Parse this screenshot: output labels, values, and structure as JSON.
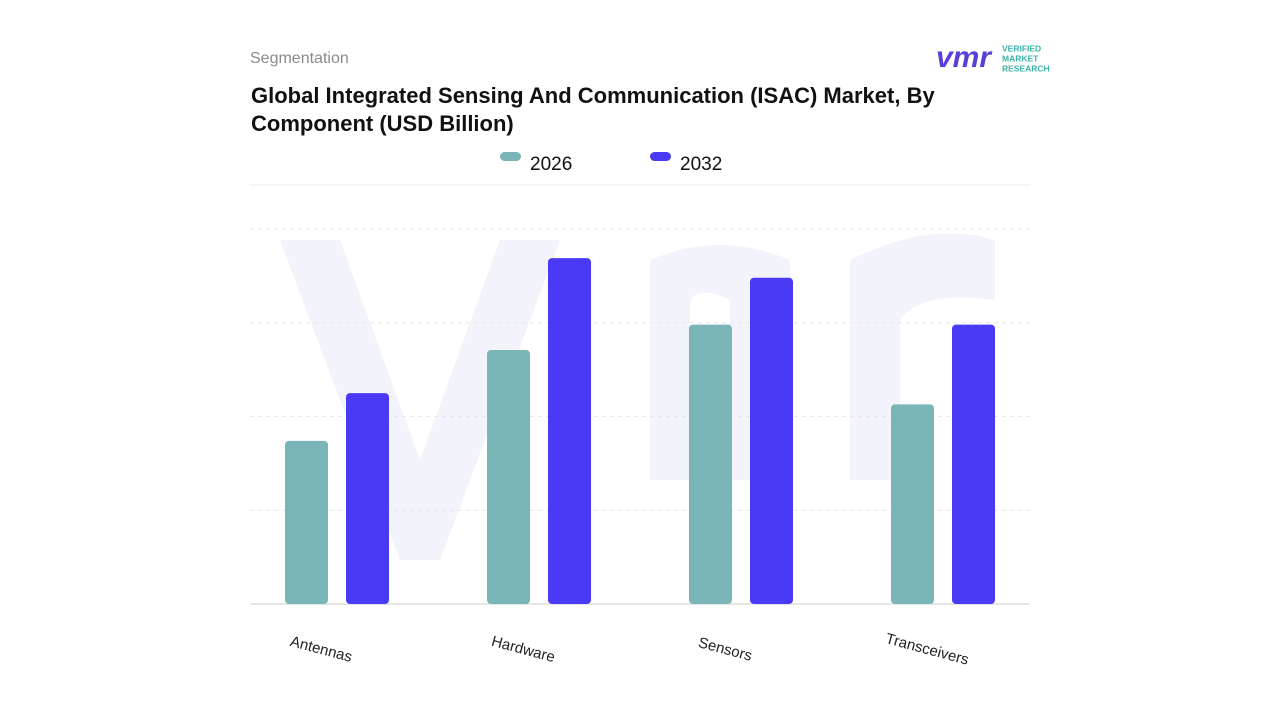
{
  "header": {
    "section": "Segmentation",
    "brand_mark": "vmr",
    "brand_lines": [
      "VERIFIED",
      "MARKET",
      "RESEARCH"
    ]
  },
  "chart_data": {
    "type": "bar",
    "title": "Global Integrated Sensing And Communication (ISAC) Market, By Component (USD Billion)",
    "categories": [
      "Antennas",
      "Hardware",
      "Sensors",
      "Transceivers"
    ],
    "series": [
      {
        "name": "2026",
        "color": "#7ab5b7",
        "values": [
          1.74,
          2.71,
          2.98,
          2.13
        ]
      },
      {
        "name": "2032",
        "color": "#4b3af5",
        "values": [
          2.25,
          3.69,
          3.48,
          2.98
        ]
      }
    ],
    "ylim": [
      0,
      4
    ],
    "yticks": [
      0,
      1,
      2,
      3,
      4
    ],
    "show_tick_labels": false,
    "grid": true
  }
}
